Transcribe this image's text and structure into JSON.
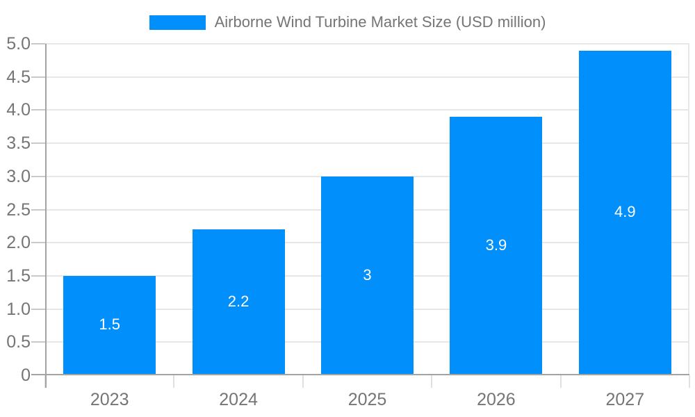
{
  "chart_data": {
    "type": "bar",
    "title": "Airborne Wind Turbine Market Size (USD million)",
    "categories": [
      "2023",
      "2024",
      "2025",
      "2026",
      "2027"
    ],
    "values": [
      1.5,
      2.2,
      3,
      3.9,
      4.9
    ],
    "value_labels": [
      "1.5",
      "2.2",
      "3",
      "3.9",
      "4.9"
    ],
    "xlabel": "",
    "ylabel": "",
    "ylim": [
      0,
      5
    ],
    "ytick_step": 0.5,
    "ytick_labels": [
      "0",
      "0.5",
      "1.0",
      "1.5",
      "2.0",
      "2.5",
      "3.0",
      "3.5",
      "4.0",
      "4.5",
      "5.0"
    ],
    "grid": true,
    "legend_position": "top"
  },
  "legend": {
    "label": "Airborne Wind Turbine Market Size (USD million)"
  },
  "colors": {
    "bar": "#008FFB",
    "bar_label": "#FFFFFF",
    "axis_text": "#757575",
    "gridline": "#E7E7E7",
    "axis_line": "#A3A3A3",
    "background": "#FFFFFF"
  }
}
